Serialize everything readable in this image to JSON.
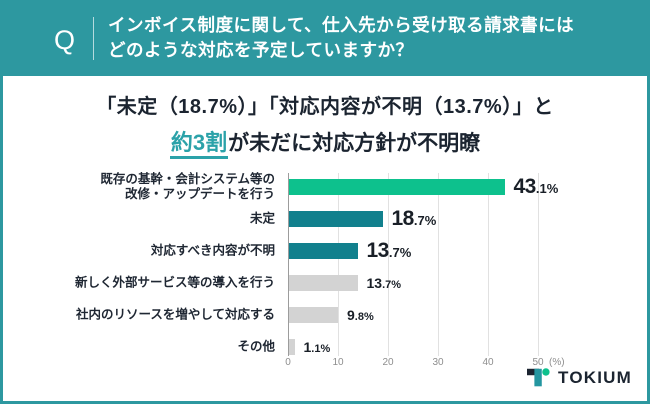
{
  "header": {
    "q_label": "Q",
    "line1": "インボイス制度に関して、仕入先から受け取る請求書には",
    "line2": "どのような対応を予定していますか？"
  },
  "headline": {
    "line1": "「未定（18.7%）」「対応内容が不明（13.7%）」と",
    "accent": "約3割",
    "rest": "が未だに対応方針が不明瞭"
  },
  "chart_data": {
    "type": "bar",
    "orientation": "horizontal",
    "categories": [
      "既存の基幹・会計システム等の\n改修・アップデートを行う",
      "未定",
      "対応すべき内容が不明",
      "新しく外部サービス等の導入を行う",
      "社内のリソースを増やして対応する",
      "その他"
    ],
    "values": [
      43.1,
      18.7,
      13.7,
      13.7,
      9.8,
      1.1
    ],
    "value_labels": [
      {
        "int": "43",
        "dec": ".1%"
      },
      {
        "int": "18",
        "dec": ".7%"
      },
      {
        "int": "13",
        "dec": ".7%"
      },
      {
        "int": "13",
        "dec": ".7%"
      },
      {
        "int": "9",
        "dec": ".8%"
      },
      {
        "int": "1",
        "dec": ".1%"
      }
    ],
    "emphasis": [
      true,
      true,
      true,
      false,
      false,
      false
    ],
    "bar_colors": [
      "#0dc18d",
      "#11808d",
      "#11808d",
      "#d3d3d3",
      "#d3d3d3",
      "#d3d3d3"
    ],
    "ticks": [
      0,
      10,
      20,
      30,
      40,
      50
    ],
    "unit_label": "(%)",
    "xlim": [
      0,
      55
    ],
    "grid": true,
    "legend": false,
    "title": ""
  },
  "logo": {
    "text": "TOKIUM"
  },
  "colors": {
    "header_teal": "#2d98a0",
    "accent_teal": "#2ba2a9",
    "bar_green": "#0dc18d",
    "bar_dark_teal": "#11808d",
    "bar_gray": "#d3d3d3",
    "text_dark": "#1b2430"
  }
}
